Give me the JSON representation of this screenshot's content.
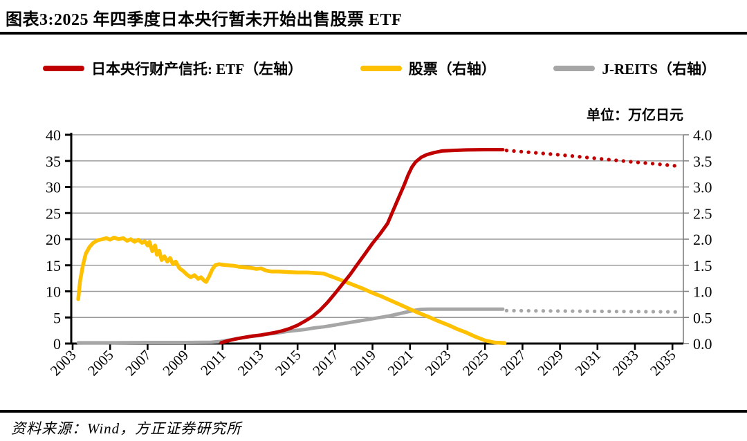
{
  "header": {
    "title": "图表3:2025 年四季度日本央行暂未开始出售股票 ETF"
  },
  "legend": {
    "items": [
      {
        "label": "日本央行财产信托: ETF（左轴）",
        "color": "#C00000"
      },
      {
        "label": "股票（右轴）",
        "color": "#FFC000"
      },
      {
        "label": "J-REITS（右轴）",
        "color": "#A6A6A6"
      }
    ]
  },
  "chart": {
    "unit_label": "单位：万亿日元"
  },
  "footer": {
    "source": "资料来源：Wind，方正证券研究所"
  },
  "chart_data": {
    "type": "line",
    "title": "图表3:2025 年四季度日本央行暂未开始出售股票 ETF",
    "unit": "万亿日元",
    "grid": true,
    "legend_position": "top",
    "x_axis": {
      "tick_labels": [
        "2003",
        "2005",
        "2007",
        "2009",
        "2011",
        "2013",
        "2015",
        "2017",
        "2019",
        "2021",
        "2023",
        "2025",
        "2027",
        "2029",
        "2031",
        "2033",
        "2035"
      ],
      "range": [
        2003,
        2035.6
      ]
    },
    "y_left": {
      "tick_labels": [
        "40",
        "35",
        "30",
        "25",
        "20",
        "15",
        "10",
        "5",
        "0"
      ],
      "range": [
        0,
        40
      ]
    },
    "y_right": {
      "tick_labels": [
        "4.0",
        "3.5",
        "3.0",
        "2.5",
        "2.0",
        "1.5",
        "1.0",
        "0.5",
        "0.0"
      ],
      "range": [
        0,
        4.0
      ]
    },
    "colors": {
      "axis": "#000000",
      "right_axis": "#808080",
      "gridline": "#9a9a9a"
    },
    "series": [
      {
        "name": "J-REITS（右轴）",
        "axis": "right",
        "color": "#A6A6A6",
        "width": 5,
        "solid": [
          [
            2003.3,
            0.015
          ],
          [
            2005,
            0.015
          ],
          [
            2007,
            0.02
          ],
          [
            2009,
            0.02
          ],
          [
            2010.4,
            0.025
          ],
          [
            2010.9,
            0.04
          ],
          [
            2011.4,
            0.07
          ],
          [
            2011.9,
            0.1
          ],
          [
            2012.4,
            0.13
          ],
          [
            2012.9,
            0.15
          ],
          [
            2013.4,
            0.18
          ],
          [
            2013.9,
            0.2
          ],
          [
            2014.4,
            0.23
          ],
          [
            2014.9,
            0.25
          ],
          [
            2015.4,
            0.27
          ],
          [
            2015.9,
            0.3
          ],
          [
            2016.4,
            0.32
          ],
          [
            2016.9,
            0.35
          ],
          [
            2017.4,
            0.38
          ],
          [
            2017.9,
            0.41
          ],
          [
            2018.4,
            0.44
          ],
          [
            2018.9,
            0.47
          ],
          [
            2019.4,
            0.5
          ],
          [
            2019.9,
            0.53
          ],
          [
            2020.4,
            0.57
          ],
          [
            2020.9,
            0.61
          ],
          [
            2021.3,
            0.64
          ],
          [
            2021.6,
            0.655
          ],
          [
            2022,
            0.66
          ],
          [
            2023,
            0.66
          ],
          [
            2024,
            0.66
          ],
          [
            2025,
            0.66
          ],
          [
            2025.95,
            0.66
          ]
        ],
        "projection": [
          [
            2026.15,
            0.63
          ],
          [
            2028,
            0.625
          ],
          [
            2030,
            0.62
          ],
          [
            2032,
            0.615
          ],
          [
            2034,
            0.61
          ],
          [
            2035.4,
            0.605
          ]
        ]
      },
      {
        "name": "股票（右轴）",
        "axis": "right",
        "color": "#FFC000",
        "width": 5.5,
        "solid": [
          [
            2003.3,
            0.85
          ],
          [
            2003.4,
            1.2
          ],
          [
            2003.55,
            1.5
          ],
          [
            2003.7,
            1.72
          ],
          [
            2003.9,
            1.85
          ],
          [
            2004.1,
            1.93
          ],
          [
            2004.35,
            1.98
          ],
          [
            2004.6,
            2.0
          ],
          [
            2004.8,
            2.02
          ],
          [
            2005,
            1.99
          ],
          [
            2005.2,
            2.03
          ],
          [
            2005.45,
            2.0
          ],
          [
            2005.7,
            2.02
          ],
          [
            2005.9,
            1.97
          ],
          [
            2006.1,
            2.0
          ],
          [
            2006.3,
            1.95
          ],
          [
            2006.5,
            1.99
          ],
          [
            2006.7,
            1.93
          ],
          [
            2006.85,
            1.96
          ],
          [
            2007,
            1.88
          ],
          [
            2007.1,
            1.95
          ],
          [
            2007.25,
            1.77
          ],
          [
            2007.4,
            1.88
          ],
          [
            2007.5,
            1.7
          ],
          [
            2007.62,
            1.78
          ],
          [
            2007.75,
            1.6
          ],
          [
            2007.9,
            1.67
          ],
          [
            2008.05,
            1.57
          ],
          [
            2008.2,
            1.64
          ],
          [
            2008.35,
            1.52
          ],
          [
            2008.5,
            1.57
          ],
          [
            2008.7,
            1.44
          ],
          [
            2008.9,
            1.39
          ],
          [
            2009.1,
            1.32
          ],
          [
            2009.3,
            1.27
          ],
          [
            2009.5,
            1.31
          ],
          [
            2009.7,
            1.24
          ],
          [
            2009.85,
            1.27
          ],
          [
            2010,
            1.21
          ],
          [
            2010.12,
            1.18
          ],
          [
            2010.3,
            1.3
          ],
          [
            2010.45,
            1.42
          ],
          [
            2010.6,
            1.5
          ],
          [
            2010.8,
            1.52
          ],
          [
            2011,
            1.51
          ],
          [
            2011.3,
            1.5
          ],
          [
            2011.6,
            1.49
          ],
          [
            2011.9,
            1.47
          ],
          [
            2012.2,
            1.46
          ],
          [
            2012.5,
            1.45
          ],
          [
            2012.8,
            1.43
          ],
          [
            2013.05,
            1.44
          ],
          [
            2013.3,
            1.4
          ],
          [
            2013.6,
            1.38
          ],
          [
            2014,
            1.38
          ],
          [
            2014.5,
            1.37
          ],
          [
            2015,
            1.36
          ],
          [
            2015.5,
            1.36
          ],
          [
            2016,
            1.35
          ],
          [
            2016.4,
            1.34
          ],
          [
            2016.7,
            1.3
          ],
          [
            2017,
            1.26
          ],
          [
            2017.5,
            1.19
          ],
          [
            2018,
            1.12
          ],
          [
            2018.5,
            1.05
          ],
          [
            2019,
            0.97
          ],
          [
            2019.5,
            0.9
          ],
          [
            2020,
            0.82
          ],
          [
            2020.5,
            0.74
          ],
          [
            2021,
            0.66
          ],
          [
            2021.5,
            0.58
          ],
          [
            2022,
            0.51
          ],
          [
            2022.5,
            0.43
          ],
          [
            2023,
            0.36
          ],
          [
            2023.5,
            0.28
          ],
          [
            2024,
            0.21
          ],
          [
            2024.5,
            0.13
          ],
          [
            2025,
            0.06
          ],
          [
            2025.5,
            0.02
          ],
          [
            2026.05,
            0.01
          ]
        ],
        "projection": []
      },
      {
        "name": "日本央行财产信托: ETF（左轴）",
        "axis": "left",
        "color": "#C00000",
        "width": 5,
        "solid": [
          [
            2010.92,
            0.15
          ],
          [
            2011.2,
            0.45
          ],
          [
            2011.5,
            0.7
          ],
          [
            2011.8,
            0.95
          ],
          [
            2012.2,
            1.2
          ],
          [
            2012.6,
            1.45
          ],
          [
            2013,
            1.6
          ],
          [
            2013.4,
            1.85
          ],
          [
            2013.8,
            2.1
          ],
          [
            2014.2,
            2.45
          ],
          [
            2014.6,
            2.9
          ],
          [
            2015,
            3.5
          ],
          [
            2015.4,
            4.3
          ],
          [
            2015.8,
            5.2
          ],
          [
            2016.2,
            6.4
          ],
          [
            2016.6,
            7.9
          ],
          [
            2017,
            9.6
          ],
          [
            2017.4,
            11.4
          ],
          [
            2017.8,
            13.2
          ],
          [
            2018.2,
            15.2
          ],
          [
            2018.6,
            17.2
          ],
          [
            2019,
            19.2
          ],
          [
            2019.4,
            21
          ],
          [
            2019.8,
            23
          ],
          [
            2020.1,
            25.5
          ],
          [
            2020.4,
            28
          ],
          [
            2020.7,
            30.5
          ],
          [
            2020.9,
            32.3
          ],
          [
            2021.1,
            33.8
          ],
          [
            2021.3,
            34.8
          ],
          [
            2021.6,
            35.7
          ],
          [
            2021.9,
            36.2
          ],
          [
            2022.3,
            36.6
          ],
          [
            2022.7,
            36.9
          ],
          [
            2023.2,
            37
          ],
          [
            2024,
            37.1
          ],
          [
            2025,
            37.15
          ],
          [
            2025.95,
            37.15
          ]
        ],
        "projection": [
          [
            2026.15,
            37.0
          ],
          [
            2027,
            36.75
          ],
          [
            2028,
            36.45
          ],
          [
            2029,
            36.15
          ],
          [
            2030,
            35.8
          ],
          [
            2031,
            35.45
          ],
          [
            2032,
            35.1
          ],
          [
            2033,
            34.75
          ],
          [
            2034,
            34.45
          ],
          [
            2035,
            34.1
          ],
          [
            2035.4,
            33.95
          ]
        ]
      }
    ]
  }
}
